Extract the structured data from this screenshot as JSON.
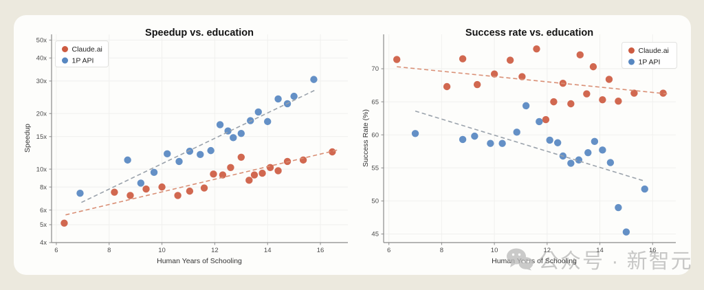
{
  "page": {
    "background_color": "#ECE9DE",
    "card_color": "#FDFDFB"
  },
  "watermark": {
    "icon": "wechat-icon",
    "text": "公众号 · 新智元",
    "color": "#bdbdbd"
  },
  "chart_data": [
    {
      "type": "scatter",
      "title": "Speedup vs. education",
      "xlabel": "Human Years of Schooling",
      "ylabel": "Speedup",
      "x_ticks": [
        6,
        8,
        10,
        12,
        14,
        16
      ],
      "y_ticks": [
        4,
        5,
        6,
        8,
        10,
        15,
        20,
        30,
        40,
        50
      ],
      "y_tick_suffix": "x",
      "y_scale": "log",
      "xlim": [
        5.82,
        17.04
      ],
      "ylim": [
        4.0,
        53.7
      ],
      "grid": true,
      "legend_position": "top-left",
      "series": [
        {
          "name": "Claude.ai",
          "color": "#cd5b41",
          "points": [
            [
              6.3,
              5.1
            ],
            [
              8.2,
              7.5
            ],
            [
              8.8,
              7.2
            ],
            [
              9.4,
              7.8
            ],
            [
              10.0,
              8.0
            ],
            [
              10.6,
              7.2
            ],
            [
              11.05,
              7.6
            ],
            [
              11.6,
              7.9
            ],
            [
              11.95,
              9.4
            ],
            [
              12.3,
              9.3
            ],
            [
              12.6,
              10.2
            ],
            [
              13.0,
              11.6
            ],
            [
              13.3,
              8.7
            ],
            [
              13.5,
              9.3
            ],
            [
              13.8,
              9.5
            ],
            [
              14.1,
              10.2
            ],
            [
              14.4,
              9.8
            ],
            [
              14.75,
              11.0
            ],
            [
              15.35,
              11.2
            ],
            [
              16.45,
              12.4
            ]
          ],
          "trend": {
            "x1": 6.35,
            "y1": 5.65,
            "x2": 16.65,
            "y2": 12.7,
            "color": "#d98e74"
          }
        },
        {
          "name": "1P API",
          "color": "#5787c1",
          "points": [
            [
              6.9,
              7.4
            ],
            [
              8.7,
              11.2
            ],
            [
              9.2,
              8.4
            ],
            [
              9.7,
              9.6
            ],
            [
              10.2,
              12.1
            ],
            [
              10.65,
              11.0
            ],
            [
              11.05,
              12.5
            ],
            [
              11.45,
              12.0
            ],
            [
              11.85,
              12.6
            ],
            [
              12.2,
              17.4
            ],
            [
              12.5,
              16.1
            ],
            [
              12.7,
              14.8
            ],
            [
              13.0,
              15.6
            ],
            [
              13.35,
              18.3
            ],
            [
              13.65,
              20.4
            ],
            [
              14.0,
              18.1
            ],
            [
              14.4,
              24.0
            ],
            [
              14.75,
              22.6
            ],
            [
              15.0,
              24.8
            ],
            [
              15.75,
              30.6
            ]
          ],
          "trend": {
            "x1": 6.95,
            "y1": 6.6,
            "x2": 15.8,
            "y2": 26.8,
            "color": "#9aa2ab"
          }
        }
      ]
    },
    {
      "type": "scatter",
      "title": "Success rate vs. education",
      "xlabel": "Human Years of Schooling",
      "ylabel": "Success Rate (%)",
      "x_ticks": [
        6,
        8,
        10,
        12,
        14,
        16
      ],
      "y_ticks": [
        45,
        50,
        55,
        60,
        65,
        70
      ],
      "y_tick_suffix": "",
      "y_scale": "linear",
      "xlim": [
        5.8,
        16.88
      ],
      "ylim": [
        43.7,
        75.2
      ],
      "grid": true,
      "legend_position": "top-right",
      "series": [
        {
          "name": "Claude.ai",
          "color": "#cd5b41",
          "points": [
            [
              6.3,
              71.4
            ],
            [
              8.2,
              67.3
            ],
            [
              8.8,
              71.5
            ],
            [
              9.35,
              67.6
            ],
            [
              10.0,
              69.2
            ],
            [
              10.6,
              71.3
            ],
            [
              11.05,
              68.8
            ],
            [
              11.6,
              73.0
            ],
            [
              11.95,
              62.3
            ],
            [
              12.25,
              65.0
            ],
            [
              12.6,
              67.8
            ],
            [
              12.9,
              64.7
            ],
            [
              13.25,
              72.1
            ],
            [
              13.5,
              66.2
            ],
            [
              13.75,
              70.3
            ],
            [
              14.1,
              65.3
            ],
            [
              14.35,
              68.4
            ],
            [
              14.7,
              65.1
            ],
            [
              15.3,
              66.3
            ],
            [
              16.4,
              66.3
            ]
          ],
          "trend": {
            "x1": 6.3,
            "y1": 70.3,
            "x2": 16.55,
            "y2": 66.2,
            "color": "#d98e74"
          }
        },
        {
          "name": "1P API",
          "color": "#5787c1",
          "points": [
            [
              7.0,
              60.2
            ],
            [
              8.8,
              59.3
            ],
            [
              9.25,
              59.8
            ],
            [
              9.85,
              58.7
            ],
            [
              10.3,
              58.7
            ],
            [
              10.85,
              60.4
            ],
            [
              11.2,
              64.4
            ],
            [
              11.7,
              62.0
            ],
            [
              12.1,
              59.2
            ],
            [
              12.4,
              58.8
            ],
            [
              12.6,
              56.8
            ],
            [
              12.9,
              55.7
            ],
            [
              13.2,
              56.2
            ],
            [
              13.55,
              57.3
            ],
            [
              13.8,
              59.0
            ],
            [
              14.1,
              57.7
            ],
            [
              14.4,
              55.8
            ],
            [
              14.7,
              49.0
            ],
            [
              15.0,
              45.3
            ],
            [
              15.7,
              51.8
            ]
          ],
          "trend": {
            "x1": 7.0,
            "y1": 63.6,
            "x2": 15.7,
            "y2": 53.0,
            "color": "#9aa2ab"
          }
        }
      ]
    }
  ]
}
